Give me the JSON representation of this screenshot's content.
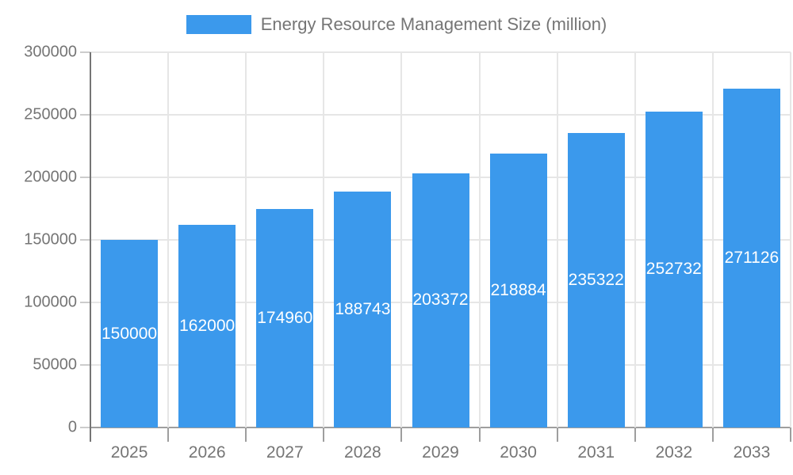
{
  "chart_data": {
    "type": "bar",
    "title": "Energy Resource Management Size (million)",
    "categories": [
      "2025",
      "2026",
      "2027",
      "2028",
      "2029",
      "2030",
      "2031",
      "2032",
      "2033"
    ],
    "values": [
      150000,
      162000,
      174960,
      188743,
      203372,
      218884,
      235322,
      252732,
      271126
    ],
    "series": [
      {
        "name": "Energy Resource Management Size (million)",
        "values": [
          150000,
          162000,
          174960,
          188743,
          203372,
          218884,
          235322,
          252732,
          271126
        ]
      }
    ],
    "xlabel": "",
    "ylabel": "",
    "ylim": [
      0,
      300000
    ],
    "y_ticks": [
      0,
      50000,
      100000,
      150000,
      200000,
      250000,
      300000
    ],
    "grid": "on",
    "legend_position": "top-center",
    "bar_color": "#3B99EC",
    "bar_label_color": "#FFFFFF",
    "axis_text_color": "#757575",
    "gridline_color": "#E6E6E6",
    "baseline_color": "#9E9E9E",
    "axis_line_color": "#757575",
    "minor_tick_color": "#CCCCCC"
  }
}
